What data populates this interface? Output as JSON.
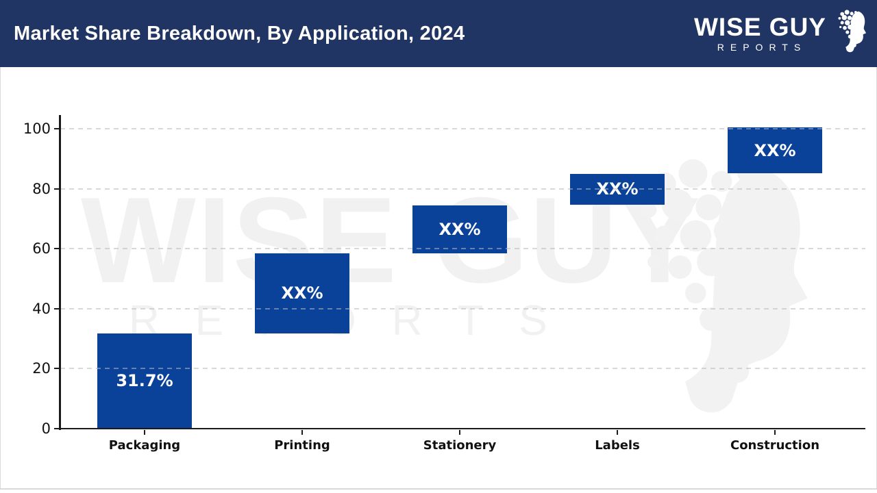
{
  "header": {
    "title": "Market Share Breakdown, By Application, 2024",
    "bg_color": "#213564",
    "logo": {
      "line1": "WISE GUY",
      "line2": "REPORTS"
    }
  },
  "watermark": {
    "line1": "WISE GUY",
    "line2": "REPORTS"
  },
  "chart_data": {
    "type": "bar",
    "subtype": "waterfall",
    "title": "Market Share Breakdown, By Application, 2024",
    "categories": [
      "Packaging",
      "Printing",
      "Stationery",
      "Labels",
      "Construction"
    ],
    "bars": [
      {
        "category": "Packaging",
        "label": "31.7%",
        "start": 0,
        "end": 31.7
      },
      {
        "category": "Printing",
        "label": "XX%",
        "start": 31.7,
        "end": 58.4
      },
      {
        "category": "Stationery",
        "label": "XX%",
        "start": 58.4,
        "end": 74.3
      },
      {
        "category": "Labels",
        "label": "XX%",
        "start": 74.7,
        "end": 84.9
      },
      {
        "category": "Construction",
        "label": "XX%",
        "start": 85.1,
        "end": 100.4
      }
    ],
    "yticks": [
      0,
      20,
      40,
      60,
      80,
      100
    ],
    "ylim": [
      0,
      104.5
    ],
    "bar_color": "#0a4199",
    "grid": "dashed-horizontal",
    "legend": "none",
    "xlabel": "",
    "ylabel": ""
  }
}
